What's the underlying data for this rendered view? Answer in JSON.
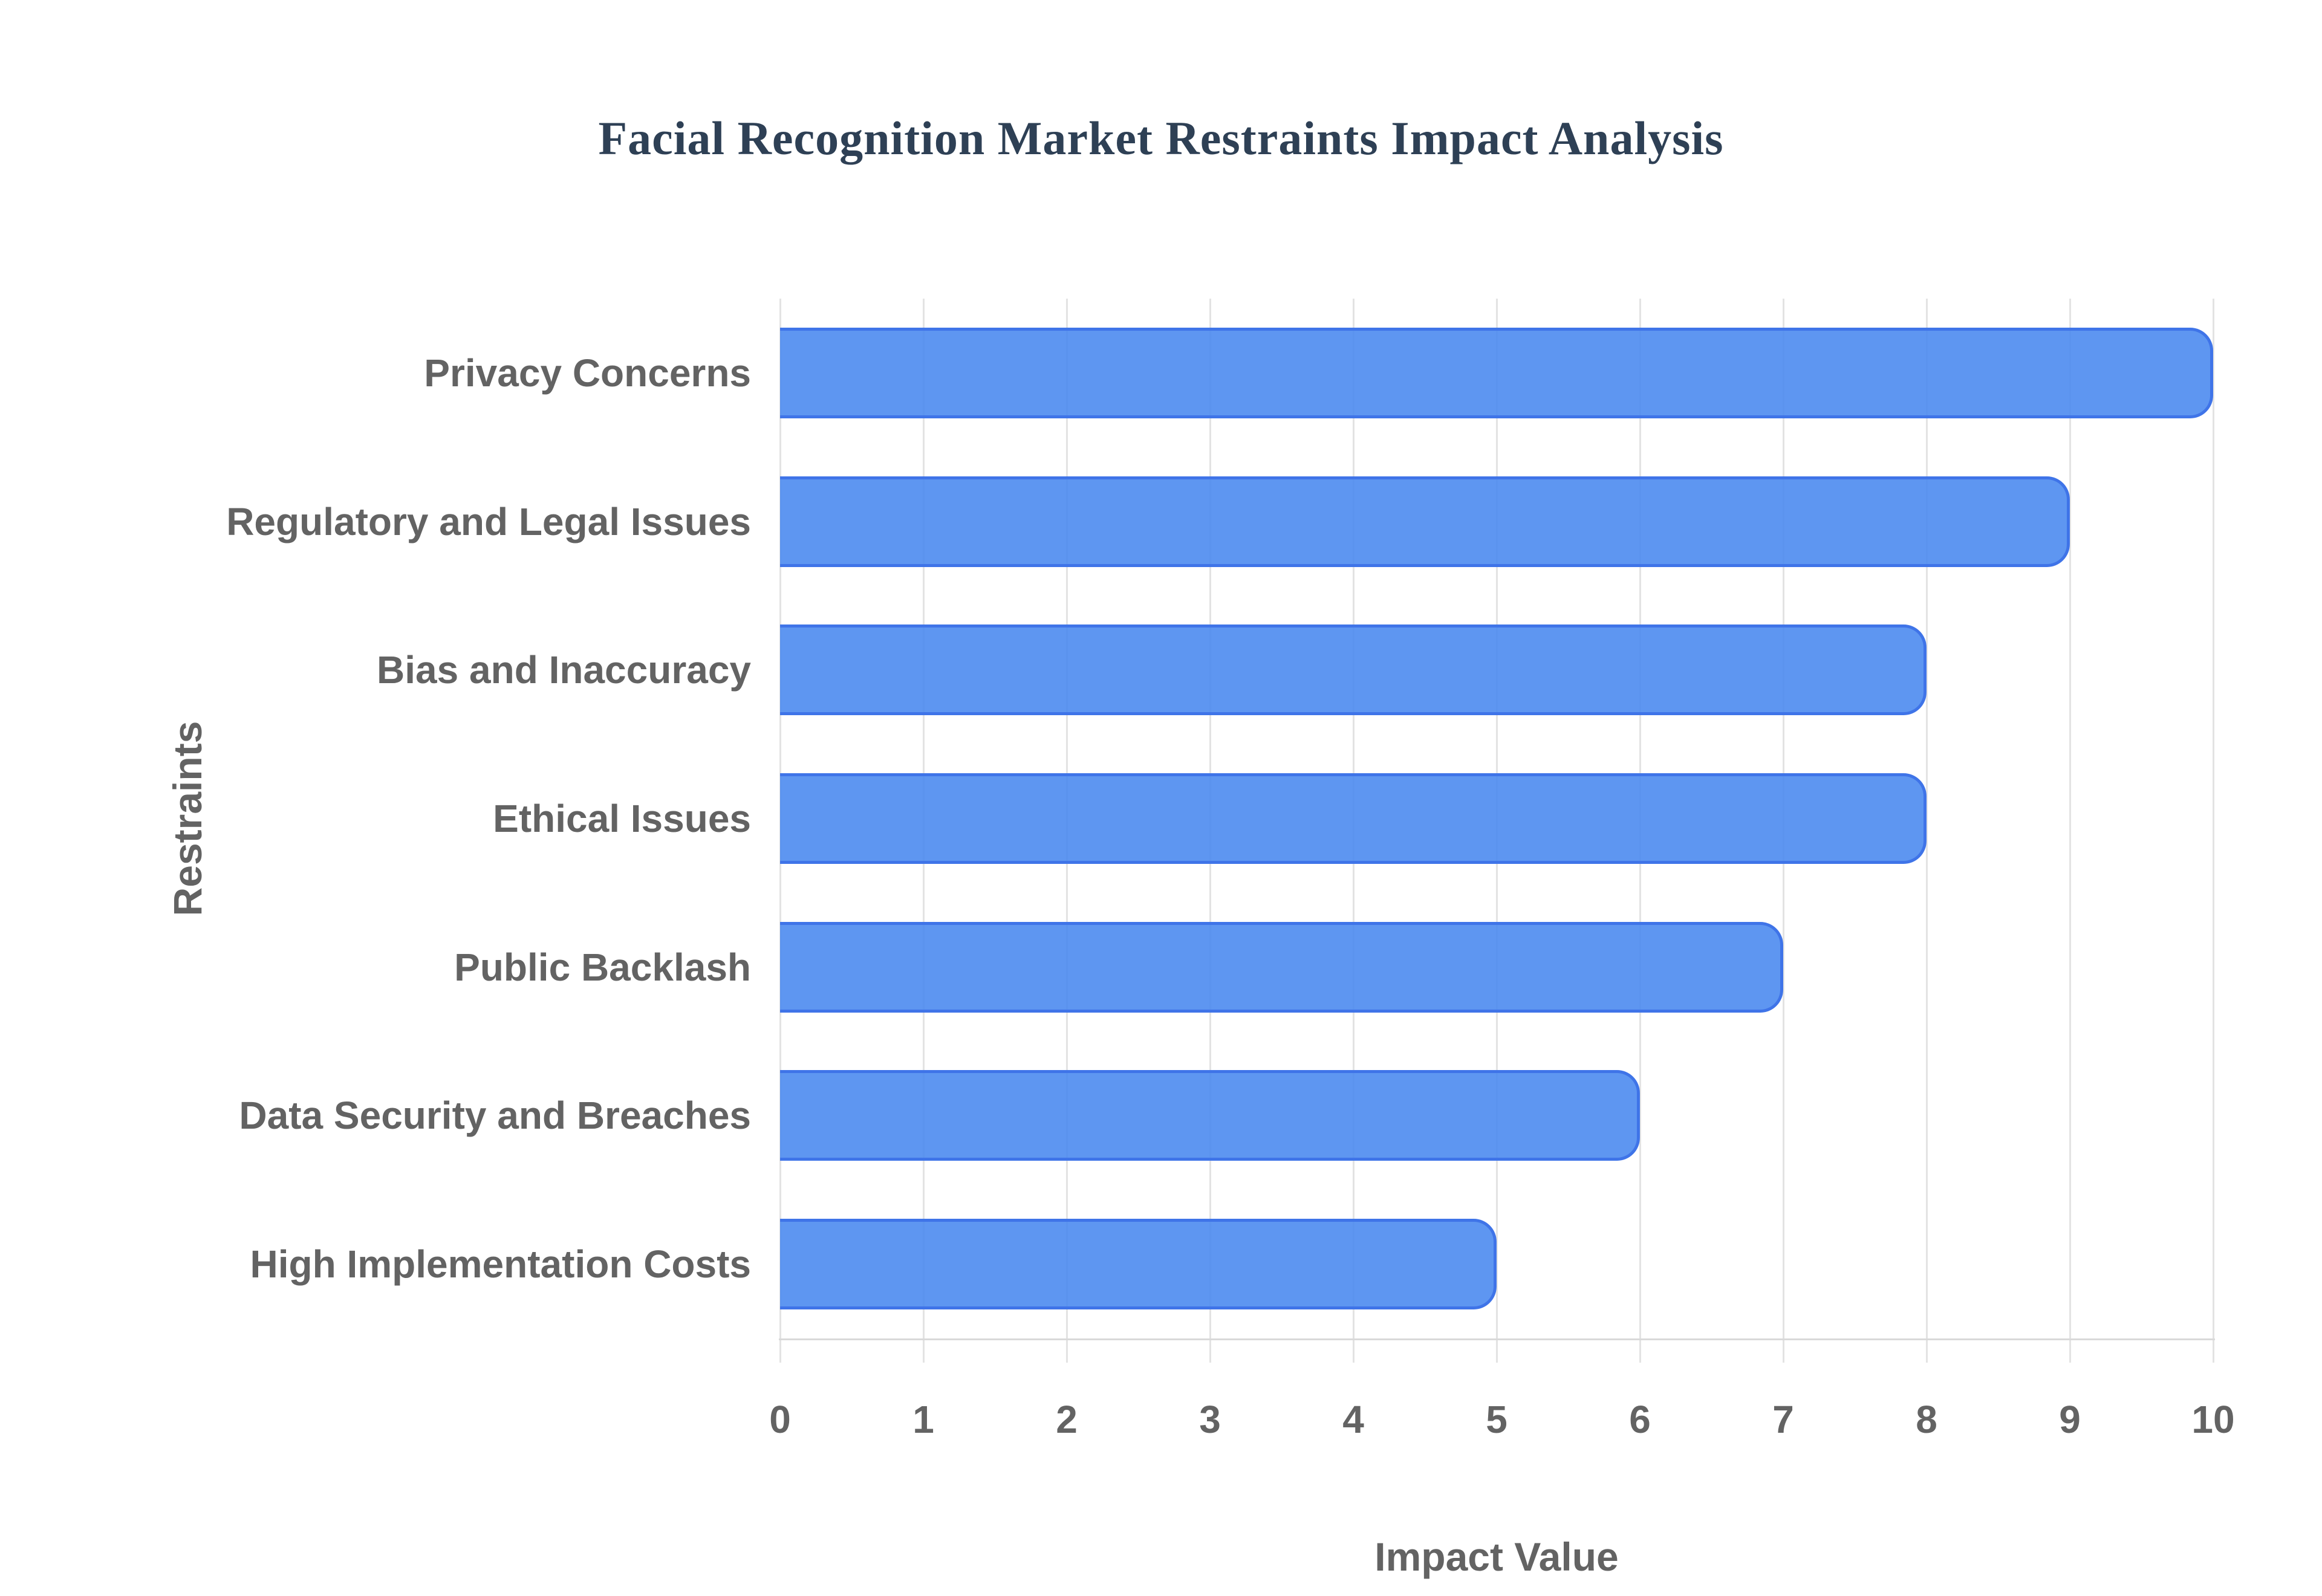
{
  "chart_data": {
    "type": "bar",
    "orientation": "horizontal",
    "title": "Facial Recognition Market Restraints Impact Analysis",
    "xlabel": "Impact Value",
    "ylabel": "Restraints",
    "categories": [
      "Privacy Concerns",
      "Regulatory and Legal Issues",
      "Bias and Inaccuracy",
      "Ethical Issues",
      "Public Backlash",
      "Data Security and Breaches",
      "High Implementation Costs"
    ],
    "values": [
      10,
      9,
      8,
      8,
      7,
      6,
      5
    ],
    "xlim": [
      0,
      10
    ],
    "xticks": [
      0,
      1,
      2,
      3,
      4,
      5,
      6,
      7,
      8,
      9,
      10
    ],
    "grid": true,
    "legend": false,
    "colors": {
      "bar_fill": "rgba(72,135,239,0.88)",
      "bar_border": "#3f74e8",
      "gridline": "#e3e3e3",
      "axis_line": "#d9d9d9",
      "tick_text": "#636363",
      "label_text": "#636363",
      "title_text": "#2e4055",
      "background": "#ffffff"
    }
  }
}
